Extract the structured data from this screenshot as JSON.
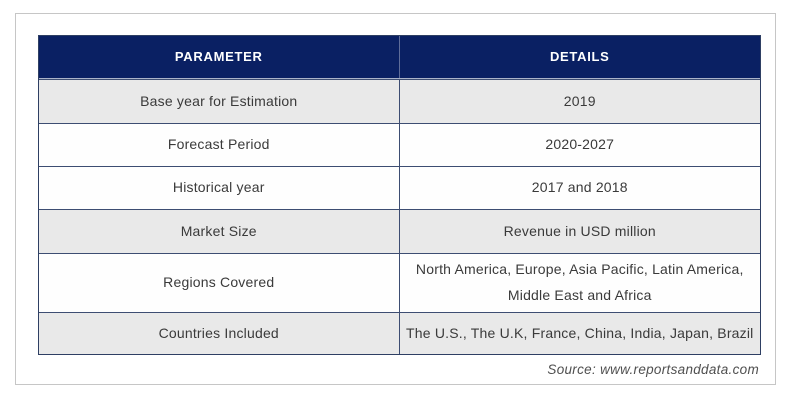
{
  "table": {
    "header": {
      "parameter": "PARAMETER",
      "details": "DETAILS"
    },
    "rows": [
      {
        "parameter": "Base year for Estimation",
        "details": "2019"
      },
      {
        "parameter": "Forecast Period",
        "details": "2020-2027"
      },
      {
        "parameter": "Historical year",
        "details": "2017 and 2018"
      },
      {
        "parameter": "Market Size",
        "details": "Revenue in USD million"
      },
      {
        "parameter": "Regions Covered",
        "details": "North America, Europe, Asia Pacific, Latin America, Middle East and Africa"
      },
      {
        "parameter": "Countries Included",
        "details": "The U.S., The U.K, France, China, India, Japan, Brazil"
      }
    ]
  },
  "source": {
    "text": "Source: www.reportsanddata.com"
  },
  "colors": {
    "header_bg": "#0a2063",
    "header_text": "#ffffff",
    "shaded_row_bg": "#e9e9e9",
    "plain_row_bg": "#fefefe",
    "cell_border": "#3d4d72",
    "card_border": "#c6c6c6",
    "body_text": "#3a3a3a",
    "source_text": "#4f4f4f"
  }
}
